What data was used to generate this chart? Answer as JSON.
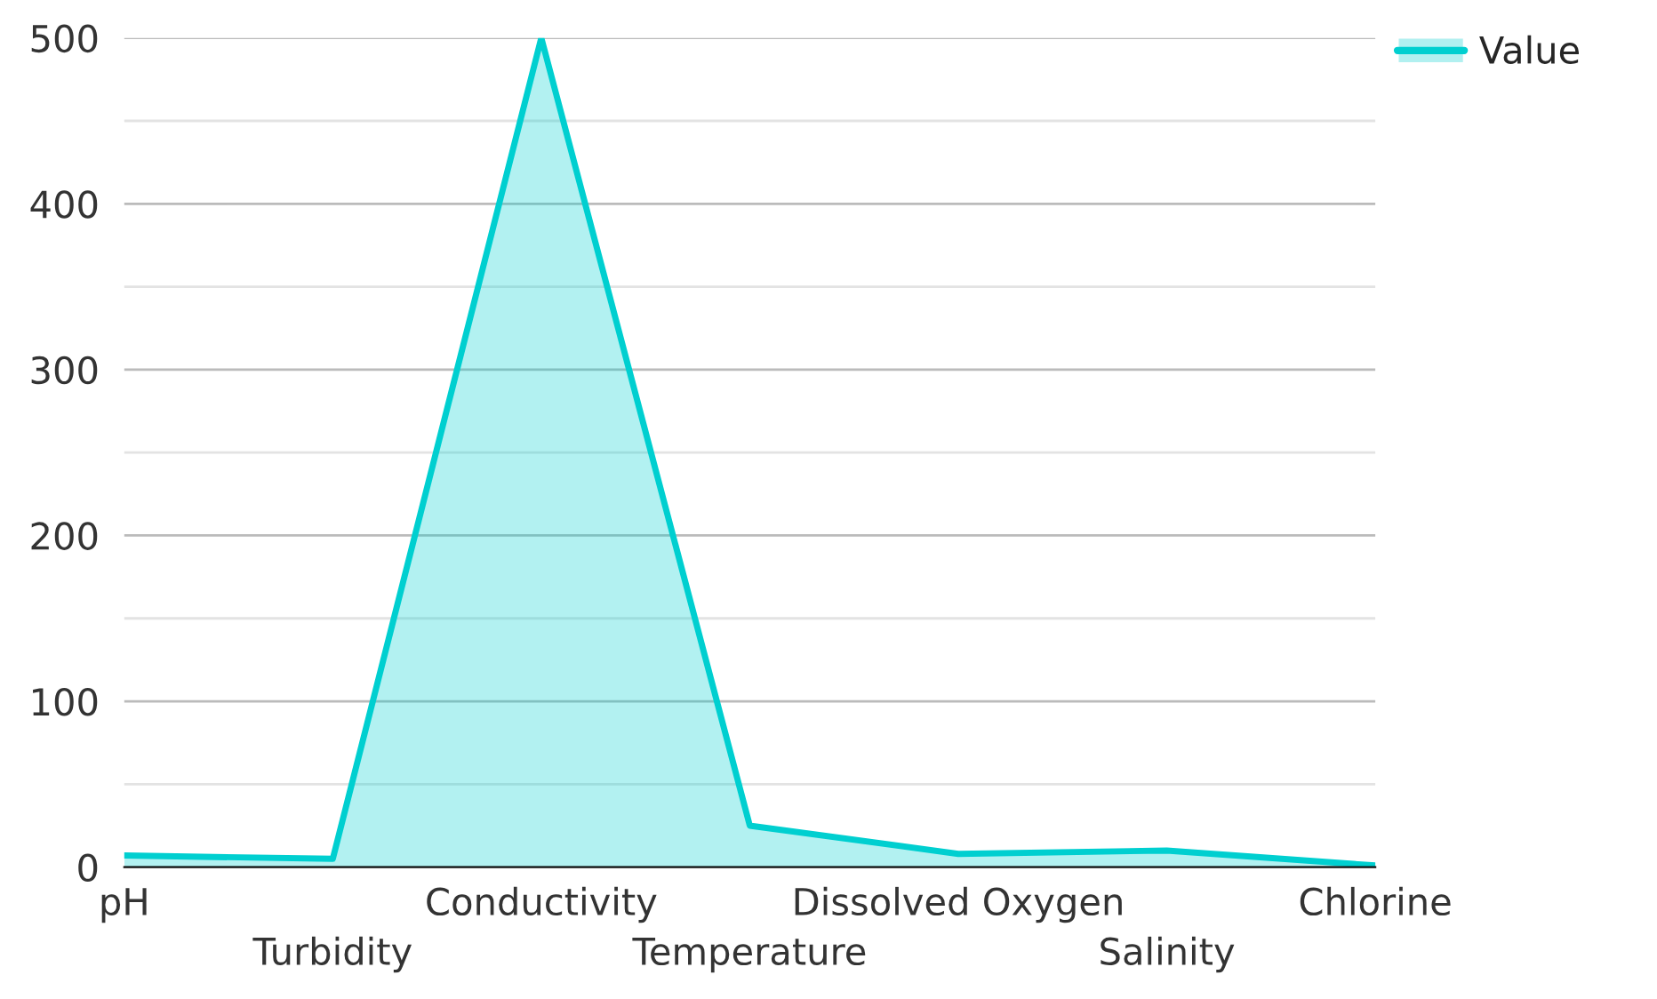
{
  "chart_data": {
    "type": "area",
    "categories": [
      "pH",
      "Turbidity",
      "Conductivity",
      "Temperature",
      "Dissolved Oxygen",
      "Salinity",
      "Chlorine"
    ],
    "series": [
      {
        "name": "Value",
        "color": "#00cfd0",
        "values": [
          7,
          5,
          500,
          25,
          8,
          10,
          1
        ]
      }
    ],
    "ylim": [
      0,
      500
    ],
    "yticks": [
      0,
      {
        "value": 50,
        "label": null
      },
      100,
      {
        "value": 150,
        "label": null
      },
      200,
      {
        "value": 250,
        "label": null
      },
      300,
      {
        "value": 350,
        "label": null
      },
      400,
      {
        "value": 450,
        "label": null
      },
      500
    ],
    "grid": "y",
    "legend": "top right"
  }
}
